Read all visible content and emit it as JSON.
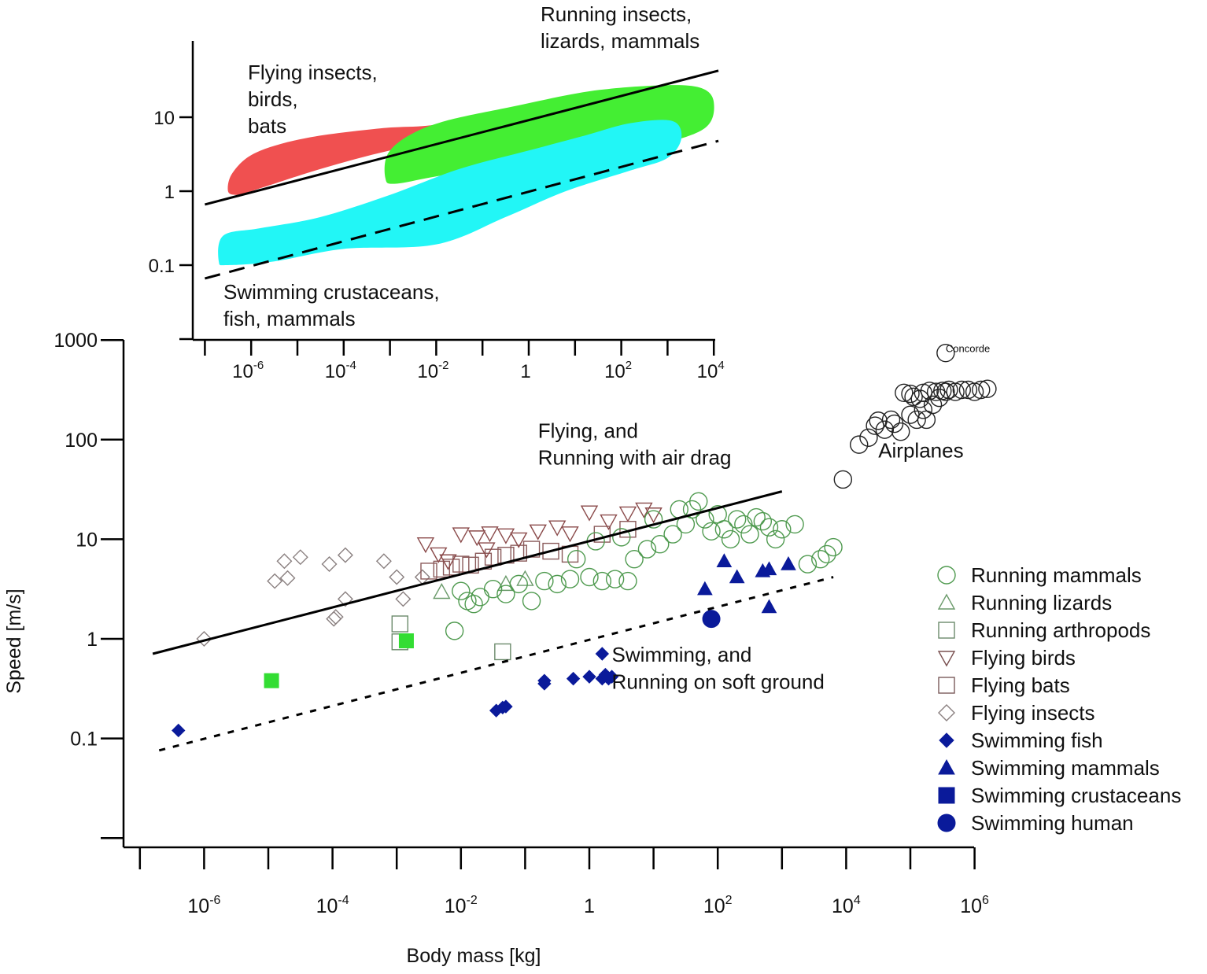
{
  "chart_data": [
    {
      "id": "main",
      "type": "scatter",
      "title": "",
      "xlabel": "Body mass [kg]",
      "ylabel": "Speed [m/s]",
      "xscale": "log",
      "yscale": "log",
      "xlim_log10": [
        -7.2,
        6
      ],
      "ylim_log10": [
        -2,
        3
      ],
      "xticks": [
        {
          "exp": -6,
          "label": "10",
          "sup": "-6"
        },
        {
          "exp": -4,
          "label": "10",
          "sup": "-4"
        },
        {
          "exp": -2,
          "label": "10",
          "sup": "-2"
        },
        {
          "exp": 0,
          "label": "1",
          "sup": ""
        },
        {
          "exp": 2,
          "label": "10",
          "sup": "2"
        },
        {
          "exp": 4,
          "label": "10",
          "sup": "4"
        },
        {
          "exp": 6,
          "label": "10",
          "sup": "6"
        }
      ],
      "xminor_ticks_exp": [
        -7,
        -5,
        -3,
        -1,
        1,
        3,
        5
      ],
      "yticks": [
        {
          "exp": 3,
          "label": "1000"
        },
        {
          "exp": 2,
          "label": "100"
        },
        {
          "exp": 1,
          "label": "10"
        },
        {
          "exp": 0,
          "label": "1"
        },
        {
          "exp": -1,
          "label": "0.1"
        },
        {
          "exp": -2,
          "label": ""
        }
      ],
      "grid": false,
      "legend_position": "right",
      "legend": [
        {
          "label": "Running mammals",
          "marker": "circle-open",
          "color": "#4f9a4f"
        },
        {
          "label": "Running lizards",
          "marker": "triangle-up-open",
          "color": "#6a9a6a"
        },
        {
          "label": "Running arthropods",
          "marker": "square-open",
          "color": "#6b8a6b"
        },
        {
          "label": "Flying birds",
          "marker": "triangle-down-open",
          "color": "#7a5050"
        },
        {
          "label": "Flying bats",
          "marker": "square-open",
          "color": "#7a5a5a"
        },
        {
          "label": "Flying insects",
          "marker": "diamond-open",
          "color": "#8a8080"
        },
        {
          "label": "Swimming fish",
          "marker": "diamond-filled",
          "color": "#0a1a9a"
        },
        {
          "label": "Swimming mammals",
          "marker": "triangle-up-filled",
          "color": "#0a1a9a"
        },
        {
          "label": "Swimming crustaceans",
          "marker": "square-filled",
          "color": "#0a1a9a"
        },
        {
          "label": "Swimming human",
          "marker": "circle-filled",
          "color": "#0a1a9a"
        }
      ],
      "lines": [
        {
          "name": "Flying, and Running with air drag",
          "style": "solid",
          "color": "#000000",
          "x_log10": [
            -6.8,
            3.0
          ],
          "y_log10": [
            -0.15,
            1.48
          ]
        },
        {
          "name": "Swimming, and Running on soft ground",
          "style": "dotted",
          "color": "#000000",
          "x_log10": [
            -6.7,
            3.8
          ],
          "y_log10": [
            -1.12,
            0.62
          ]
        }
      ],
      "annotations": [
        {
          "text": "Flying, and",
          "x_log10": -0.8,
          "y_log10": 2.02
        },
        {
          "text": "Running with air drag",
          "x_log10": -0.8,
          "y_log10": 1.75
        },
        {
          "text": "Swimming, and",
          "x_log10": 0.35,
          "y_log10": -0.23
        },
        {
          "text": "Running on soft ground",
          "x_log10": 0.35,
          "y_log10": -0.5
        },
        {
          "text": "Airplanes",
          "x_log10": 4.5,
          "y_log10": 1.82
        },
        {
          "text": "Concorde",
          "x_log10": 5.55,
          "y_log10": 2.88
        }
      ],
      "series": [
        {
          "name": "Flying insects",
          "marker": "diamond-open",
          "color": "#8a8080",
          "points_log10": [
            [
              -6.0,
              0.0
            ],
            [
              -4.9,
              0.58
            ],
            [
              -4.7,
              0.61
            ],
            [
              -4.75,
              0.78
            ],
            [
              -4.5,
              0.82
            ],
            [
              -4.05,
              0.75
            ],
            [
              -3.95,
              0.22
            ],
            [
              -3.98,
              0.2
            ],
            [
              -3.8,
              0.4
            ],
            [
              -3.8,
              0.84
            ],
            [
              -3.2,
              0.78
            ],
            [
              -3.0,
              0.62
            ],
            [
              -2.6,
              0.62
            ],
            [
              -2.9,
              0.4
            ]
          ]
        },
        {
          "name": "Flying bats",
          "marker": "square-open",
          "color": "#8a5a5a",
          "points_log10": [
            [
              -2.5,
              0.68
            ],
            [
              -2.3,
              0.7
            ],
            [
              -2.15,
              0.72
            ],
            [
              -2.0,
              0.75
            ],
            [
              -1.85,
              0.74
            ],
            [
              -1.65,
              0.78
            ],
            [
              -1.5,
              0.82
            ],
            [
              -1.3,
              0.84
            ],
            [
              -1.1,
              0.86
            ],
            [
              -0.9,
              0.9
            ],
            [
              -0.6,
              0.88
            ],
            [
              -0.3,
              0.85
            ],
            [
              0.2,
              1.05
            ],
            [
              0.6,
              1.1
            ]
          ]
        },
        {
          "name": "Flying birds",
          "marker": "triangle-down-open",
          "color": "#8a4a4a",
          "points_log10": [
            [
              -2.55,
              0.95
            ],
            [
              -2.35,
              0.85
            ],
            [
              -2.0,
              1.05
            ],
            [
              -1.75,
              1.02
            ],
            [
              -1.55,
              1.06
            ],
            [
              -1.3,
              1.04
            ],
            [
              -1.1,
              1.0
            ],
            [
              -0.8,
              1.08
            ],
            [
              -0.5,
              1.12
            ],
            [
              -0.3,
              1.06
            ],
            [
              0.0,
              1.27
            ],
            [
              0.3,
              1.18
            ],
            [
              0.6,
              1.26
            ],
            [
              0.85,
              1.3
            ],
            [
              1.0,
              1.25
            ],
            [
              -2.2,
              0.78
            ],
            [
              -1.6,
              0.9
            ]
          ]
        },
        {
          "name": "Running lizards",
          "marker": "triangle-up-open",
          "color": "#6a9a6a",
          "points_log10": [
            [
              -2.3,
              0.47
            ],
            [
              -1.3,
              0.55
            ],
            [
              -1.0,
              0.6
            ]
          ]
        },
        {
          "name": "Running arthropods",
          "marker": "square-open",
          "color": "#6b8a6b",
          "points_log10": [
            [
              -2.95,
              0.15
            ],
            [
              -2.95,
              -0.03
            ],
            [
              -1.35,
              -0.13
            ]
          ]
        },
        {
          "name": "Running mammals",
          "marker": "circle-open",
          "color": "#4f9a4f",
          "points_log10": [
            [
              -2.1,
              0.08
            ],
            [
              -2.0,
              0.48
            ],
            [
              -1.9,
              0.38
            ],
            [
              -1.8,
              0.35
            ],
            [
              -1.7,
              0.42
            ],
            [
              -1.5,
              0.5
            ],
            [
              -1.3,
              0.45
            ],
            [
              -1.1,
              0.55
            ],
            [
              -0.9,
              0.38
            ],
            [
              -0.7,
              0.58
            ],
            [
              -0.5,
              0.55
            ],
            [
              -0.3,
              0.6
            ],
            [
              0.0,
              0.62
            ],
            [
              0.2,
              0.58
            ],
            [
              0.4,
              0.6
            ],
            [
              0.6,
              0.58
            ],
            [
              0.7,
              0.8
            ],
            [
              0.9,
              0.9
            ],
            [
              1.1,
              0.95
            ],
            [
              1.3,
              1.05
            ],
            [
              1.5,
              1.15
            ],
            [
              1.6,
              1.3
            ],
            [
              1.7,
              1.38
            ],
            [
              1.8,
              1.2
            ],
            [
              1.9,
              1.08
            ],
            [
              2.0,
              1.25
            ],
            [
              2.1,
              1.1
            ],
            [
              2.2,
              1.0
            ],
            [
              2.3,
              1.2
            ],
            [
              2.4,
              1.15
            ],
            [
              2.5,
              1.05
            ],
            [
              2.6,
              1.22
            ],
            [
              2.7,
              1.18
            ],
            [
              2.8,
              1.12
            ],
            [
              2.9,
              1.0
            ],
            [
              3.0,
              1.1
            ],
            [
              3.2,
              1.15
            ],
            [
              3.4,
              0.75
            ],
            [
              3.6,
              0.8
            ],
            [
              3.7,
              0.85
            ],
            [
              3.8,
              0.92
            ],
            [
              -0.2,
              0.8
            ],
            [
              0.1,
              0.98
            ],
            [
              0.5,
              1.02
            ],
            [
              1.0,
              1.2
            ],
            [
              1.4,
              1.3
            ]
          ]
        },
        {
          "name": "Swimming fish",
          "marker": "diamond-filled",
          "color": "#0a1a9a",
          "points_log10": [
            [
              -6.4,
              -0.92
            ],
            [
              -1.45,
              -0.72
            ],
            [
              -1.3,
              -0.68
            ],
            [
              -1.35,
              -0.69
            ],
            [
              -0.7,
              -0.45
            ],
            [
              -0.7,
              -0.42
            ],
            [
              -0.25,
              -0.4
            ],
            [
              0.0,
              -0.38
            ],
            [
              0.2,
              -0.4
            ],
            [
              0.2,
              -0.15
            ],
            [
              0.3,
              -0.4
            ],
            [
              0.25,
              -0.36
            ],
            [
              0.35,
              -0.38
            ]
          ]
        },
        {
          "name": "Swimming mammals",
          "marker": "triangle-up-filled",
          "color": "#0a1a9a",
          "points_log10": [
            [
              1.8,
              0.5
            ],
            [
              2.1,
              0.78
            ],
            [
              2.3,
              0.62
            ],
            [
              2.7,
              0.68
            ],
            [
              2.8,
              0.7
            ],
            [
              3.1,
              0.75
            ],
            [
              2.8,
              0.32
            ]
          ]
        },
        {
          "name": "Swimming crustaceans",
          "marker": "square-filled",
          "color": "#33dd33",
          "points_log10": [
            [
              -4.95,
              -0.42
            ],
            [
              -2.85,
              -0.02
            ]
          ]
        },
        {
          "name": "Swimming human",
          "marker": "circle-filled",
          "color": "#0a1a9a",
          "points_log10": [
            [
              1.9,
              0.2
            ]
          ]
        },
        {
          "name": "Airplanes",
          "marker": "circle-open",
          "color": "#222222",
          "points_log10": [
            [
              3.95,
              1.6
            ],
            [
              4.2,
              1.95
            ],
            [
              4.45,
              2.14
            ],
            [
              4.6,
              2.1
            ],
            [
              4.7,
              2.2
            ],
            [
              4.75,
              2.16
            ],
            [
              4.85,
              2.08
            ],
            [
              5.0,
              2.25
            ],
            [
              5.1,
              2.2
            ],
            [
              5.2,
              2.3
            ],
            [
              5.25,
              2.2
            ],
            [
              5.35,
              2.35
            ],
            [
              5.45,
              2.42
            ],
            [
              5.55,
              2.48
            ],
            [
              5.0,
              2.46
            ],
            [
              5.2,
              2.47
            ],
            [
              5.4,
              2.48
            ],
            [
              5.6,
              2.5
            ],
            [
              5.7,
              2.48
            ],
            [
              5.8,
              2.5
            ],
            [
              5.9,
              2.5
            ],
            [
              6.0,
              2.48
            ],
            [
              6.1,
              2.5
            ],
            [
              6.2,
              2.51
            ],
            [
              5.3,
              2.49
            ],
            [
              5.5,
              2.49
            ],
            [
              4.9,
              2.47
            ],
            [
              5.05,
              2.43
            ],
            [
              5.15,
              2.41
            ],
            [
              4.5,
              2.19
            ],
            [
              4.35,
              2.02
            ]
          ]
        },
        {
          "name": "Concorde",
          "marker": "circle-open",
          "color": "#222222",
          "points_log10": [
            [
              5.55,
              2.87
            ]
          ]
        }
      ]
    },
    {
      "id": "inset",
      "type": "area",
      "xscale": "log",
      "yscale": "log",
      "xlim_log10": [
        -7.0,
        4.0
      ],
      "ylim_log10": [
        -2,
        1.0
      ],
      "xticks": [
        {
          "exp": -6,
          "label": "10",
          "sup": "-6"
        },
        {
          "exp": -4,
          "label": "10",
          "sup": "-4"
        },
        {
          "exp": -2,
          "label": "10",
          "sup": "-2"
        },
        {
          "exp": 0,
          "label": "1",
          "sup": ""
        },
        {
          "exp": 2,
          "label": "10",
          "sup": "2"
        },
        {
          "exp": 4,
          "label": "10",
          "sup": "4"
        }
      ],
      "xminor_ticks_exp": [
        -7,
        -5,
        -3,
        -1,
        1,
        3
      ],
      "yticks": [
        {
          "exp": 1,
          "label": "10"
        },
        {
          "exp": 0,
          "label": "1"
        },
        {
          "exp": -1,
          "label": "0.1"
        },
        {
          "exp": -2,
          "label": ""
        }
      ],
      "regions": [
        {
          "name": "Flying insects, birds, bats",
          "color": "#f05050"
        },
        {
          "name": "Running insects, lizards, mammals",
          "color": "#44ee33"
        },
        {
          "name": "Swimming crustaceans, fish, mammals",
          "color": "#22f6f6"
        }
      ],
      "lines": [
        {
          "style": "solid",
          "color": "#000000",
          "x_log10": [
            -7.0,
            4.1
          ],
          "y_log10": [
            -0.18,
            1.63
          ]
        },
        {
          "style": "dashed",
          "color": "#000000",
          "x_log10": [
            -7.0,
            4.1
          ],
          "y_log10": [
            -1.18,
            0.68
          ]
        }
      ],
      "annotations": [
        {
          "text": "Flying insects,",
          "line": 1
        },
        {
          "text": "birds,",
          "line": 2
        },
        {
          "text": "bats",
          "line": 3
        },
        {
          "text": "Running insects,",
          "line": 1
        },
        {
          "text": "lizards, mammals",
          "line": 2
        },
        {
          "text": "Swimming crustaceans,",
          "line": 1
        },
        {
          "text": "fish, mammals",
          "line": 2
        }
      ]
    }
  ]
}
